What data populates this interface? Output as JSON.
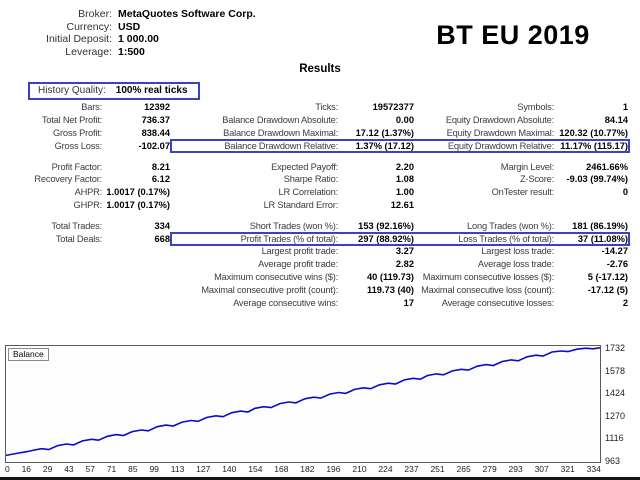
{
  "colors": {
    "accent": "#3a41c6",
    "chart_line": "#0a0acb"
  },
  "header": {
    "title": "BT EU 2019",
    "info": [
      {
        "label": "Broker:",
        "value": "MetaQuotes Software Corp."
      },
      {
        "label": "Currency:",
        "value": "USD"
      },
      {
        "label": "Initial Deposit:",
        "value": "1 000.00"
      },
      {
        "label": "Leverage:",
        "value": "1:500"
      }
    ]
  },
  "results_title": "Results",
  "history_quality": {
    "label": "History Quality:",
    "value": "100% real ticks"
  },
  "stats": {
    "rows": [
      {
        "l": [
          "Bars:",
          "12392"
        ],
        "m": [
          "Ticks:",
          "19572377"
        ],
        "r": [
          "Symbols:",
          "1"
        ],
        "hl": false
      },
      {
        "l": [
          "Total Net Profit:",
          "736.37"
        ],
        "m": [
          "Balance Drawdown Absolute:",
          "0.00"
        ],
        "r": [
          "Equity Drawdown Absolute:",
          "84.14"
        ],
        "hl": false
      },
      {
        "l": [
          "Gross Profit:",
          "838.44"
        ],
        "m": [
          "Balance Drawdown Maximal:",
          "17.12 (1.37%)"
        ],
        "r": [
          "Equity Drawdown Maximal:",
          "120.32 (10.77%)"
        ],
        "hl": false
      },
      {
        "l": [
          "Gross Loss:",
          "-102.07"
        ],
        "m": [
          "Balance Drawdown Relative:",
          "1.37% (17.12)"
        ],
        "r": [
          "Equity Drawdown Relative:",
          "11.17% (115.17)"
        ],
        "hl": true
      },
      {
        "spacer": true
      },
      {
        "l": [
          "Profit Factor:",
          "8.21"
        ],
        "m": [
          "Expected Payoff:",
          "2.20"
        ],
        "r": [
          "Margin Level:",
          "2461.66%"
        ],
        "hl": false
      },
      {
        "l": [
          "Recovery Factor:",
          "6.12"
        ],
        "m": [
          "Sharpe Ratio:",
          "1.08"
        ],
        "r": [
          "Z-Score:",
          "-9.03 (99.74%)"
        ],
        "hl": false
      },
      {
        "l": [
          "AHPR:",
          "1.0017 (0.17%)"
        ],
        "m": [
          "LR Correlation:",
          "1.00"
        ],
        "r": [
          "OnTester result:",
          "0"
        ],
        "hl": false
      },
      {
        "l": [
          "GHPR:",
          "1.0017 (0.17%)"
        ],
        "m": [
          "LR Standard Error:",
          "12.61"
        ],
        "r": [
          "",
          ""
        ],
        "hl": false
      },
      {
        "spacer": true
      },
      {
        "l": [
          "Total Trades:",
          "334"
        ],
        "m": [
          "Short Trades (won %):",
          "153 (92.16%)"
        ],
        "r": [
          "Long Trades (won %):",
          "181 (86.19%)"
        ],
        "hl": false
      },
      {
        "l": [
          "Total Deals:",
          "668"
        ],
        "m": [
          "Profit Trades (% of total):",
          "297 (88.92%)"
        ],
        "r": [
          "Loss Trades (% of total):",
          "37 (11.08%)"
        ],
        "hl": true
      },
      {
        "l": [
          "",
          ""
        ],
        "m": [
          "Largest profit trade:",
          "3.27"
        ],
        "r": [
          "Largest loss trade:",
          "-14.27"
        ],
        "hl": false
      },
      {
        "l": [
          "",
          ""
        ],
        "m": [
          "Average profit trade:",
          "2.82"
        ],
        "r": [
          "Average loss trade:",
          "-2.76"
        ],
        "hl": false
      },
      {
        "l": [
          "",
          ""
        ],
        "m": [
          "Maximum consecutive wins ($):",
          "40 (119.73)"
        ],
        "r": [
          "Maximum consecutive losses ($):",
          "5 (-17.12)"
        ],
        "hl": false
      },
      {
        "l": [
          "",
          ""
        ],
        "m": [
          "Maximal consecutive profit (count):",
          "119.73 (40)"
        ],
        "r": [
          "Maximal consecutive loss (count):",
          "-17.12 (5)"
        ],
        "hl": false
      },
      {
        "l": [
          "",
          ""
        ],
        "m": [
          "Average consecutive wins:",
          "17"
        ],
        "r": [
          "Average consecutive losses:",
          "2"
        ],
        "hl": false
      }
    ]
  },
  "chart_data": {
    "type": "line",
    "legend": "Balance",
    "series_name": "Balance",
    "xlim": [
      0,
      334
    ],
    "ylim": [
      955,
      1748
    ],
    "x_ticks": [
      0,
      16,
      29,
      43,
      57,
      71,
      85,
      99,
      113,
      127,
      140,
      154,
      168,
      182,
      196,
      210,
      224,
      237,
      251,
      265,
      279,
      293,
      307,
      321,
      334
    ],
    "y_ticks": [
      963,
      1116,
      1270,
      1424,
      1578,
      1732
    ],
    "points": [
      [
        0,
        1000
      ],
      [
        6,
        1014
      ],
      [
        12,
        1026
      ],
      [
        16,
        1037
      ],
      [
        20,
        1046
      ],
      [
        24,
        1040
      ],
      [
        29,
        1067
      ],
      [
        34,
        1078
      ],
      [
        38,
        1072
      ],
      [
        43,
        1099
      ],
      [
        48,
        1110
      ],
      [
        52,
        1104
      ],
      [
        57,
        1131
      ],
      [
        62,
        1142
      ],
      [
        66,
        1136
      ],
      [
        71,
        1163
      ],
      [
        76,
        1174
      ],
      [
        80,
        1168
      ],
      [
        85,
        1196
      ],
      [
        90,
        1207
      ],
      [
        94,
        1201
      ],
      [
        99,
        1228
      ],
      [
        104,
        1239
      ],
      [
        108,
        1233
      ],
      [
        113,
        1260
      ],
      [
        118,
        1271
      ],
      [
        122,
        1265
      ],
      [
        127,
        1292
      ],
      [
        132,
        1303
      ],
      [
        136,
        1297
      ],
      [
        140,
        1322
      ],
      [
        145,
        1333
      ],
      [
        149,
        1327
      ],
      [
        154,
        1354
      ],
      [
        159,
        1365
      ],
      [
        163,
        1359
      ],
      [
        168,
        1387
      ],
      [
        173,
        1398
      ],
      [
        177,
        1392
      ],
      [
        182,
        1419
      ],
      [
        187,
        1430
      ],
      [
        191,
        1424
      ],
      [
        196,
        1451
      ],
      [
        201,
        1462
      ],
      [
        205,
        1456
      ],
      [
        210,
        1483
      ],
      [
        215,
        1494
      ],
      [
        219,
        1488
      ],
      [
        224,
        1516
      ],
      [
        229,
        1527
      ],
      [
        233,
        1521
      ],
      [
        237,
        1546
      ],
      [
        242,
        1557
      ],
      [
        246,
        1551
      ],
      [
        251,
        1578
      ],
      [
        256,
        1589
      ],
      [
        260,
        1583
      ],
      [
        265,
        1610
      ],
      [
        270,
        1621
      ],
      [
        274,
        1615
      ],
      [
        279,
        1642
      ],
      [
        284,
        1653
      ],
      [
        288,
        1647
      ],
      [
        293,
        1674
      ],
      [
        298,
        1685
      ],
      [
        302,
        1679
      ],
      [
        307,
        1707
      ],
      [
        312,
        1714
      ],
      [
        316,
        1710
      ],
      [
        321,
        1726
      ],
      [
        326,
        1733
      ],
      [
        330,
        1729
      ],
      [
        334,
        1736
      ]
    ]
  }
}
